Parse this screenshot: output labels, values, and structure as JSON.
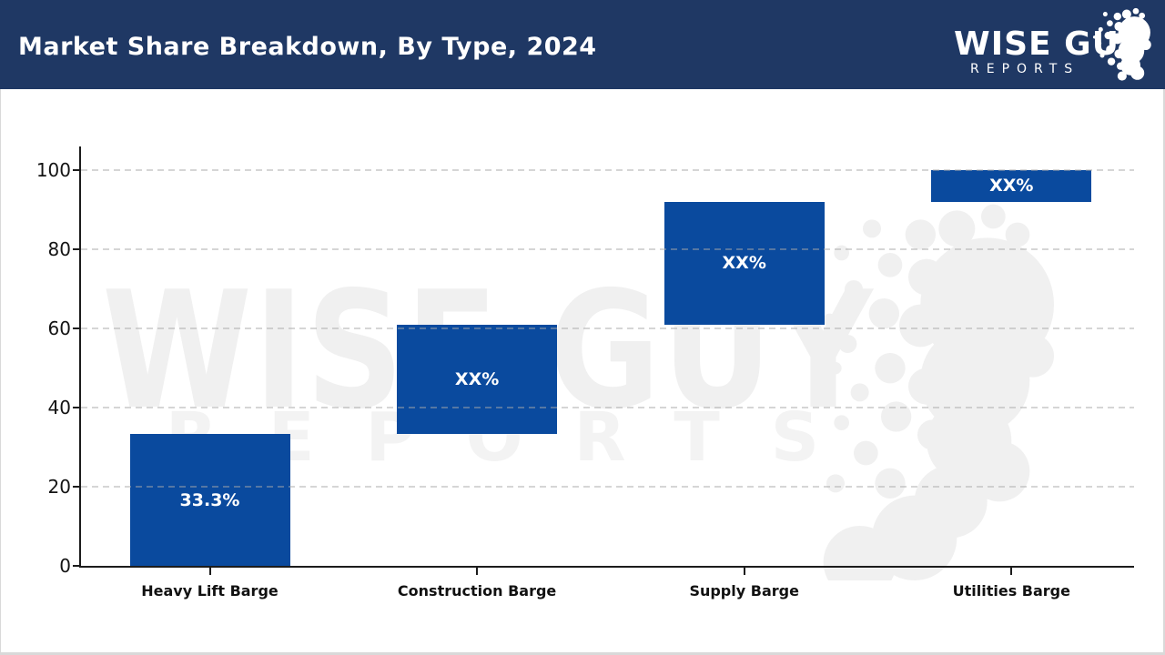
{
  "header": {
    "title": "Market Share Breakdown, By Type, 2024",
    "logo": {
      "name": "WISE GUY",
      "tagline": "REPORTS"
    }
  },
  "watermark": {
    "name": "WISE GUY",
    "tagline": "REPORTS"
  },
  "colors": {
    "header_bg": "#1f3864",
    "bar": "#0a4a9e",
    "axis": "#1c1c1c",
    "bar_label_text": "#ffffff",
    "watermark": "#f0f0f0"
  },
  "chart_data": {
    "type": "bar",
    "subtype": "waterfall",
    "title": "Market Share Breakdown, By Type, 2024",
    "xlabel": "",
    "ylabel": "",
    "categories": [
      "Heavy Lift Barge",
      "Construction Barge",
      "Supply Barge",
      "Utilities Barge"
    ],
    "segments": [
      {
        "category": "Heavy Lift Barge",
        "start": 0,
        "end": 33.3,
        "label": "33.3%"
      },
      {
        "category": "Construction Barge",
        "start": 33.3,
        "end": 61.0,
        "label": "XX%"
      },
      {
        "category": "Supply Barge",
        "start": 61.0,
        "end": 92.0,
        "label": "XX%"
      },
      {
        "category": "Utilities Barge",
        "start": 92.0,
        "end": 100.0,
        "label": "XX%"
      }
    ],
    "yticks": [
      0,
      20,
      40,
      60,
      80,
      100
    ],
    "ylim": [
      0,
      106
    ],
    "grid": "horizontal-dashed",
    "legend": "none"
  }
}
